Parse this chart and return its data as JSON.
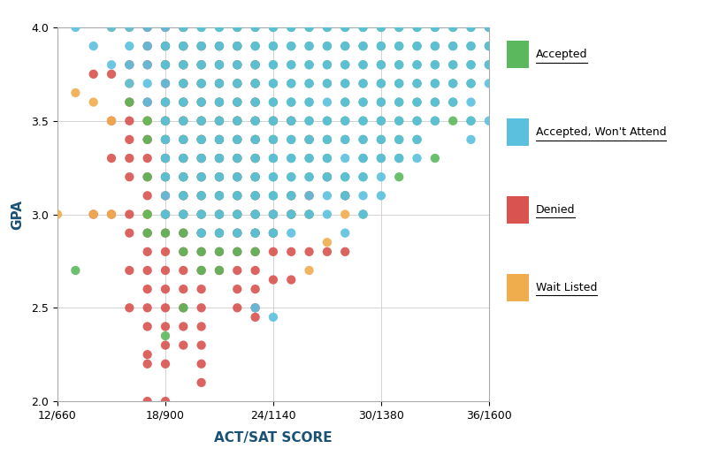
{
  "xlabel": "ACT/SAT SCORE",
  "ylabel": "GPA",
  "xlim": [
    12,
    36
  ],
  "ylim": [
    2.0,
    4.0
  ],
  "xticks": [
    12,
    18,
    24,
    30,
    36
  ],
  "xticklabels": [
    "12/660",
    "18/900",
    "24/1140",
    "30/1380",
    "36/1600"
  ],
  "yticks": [
    2.0,
    2.5,
    3.0,
    3.5,
    4.0
  ],
  "colors": {
    "Accepted": "#5cb85c",
    "Accepted, Won't Attend": "#5bc0de",
    "Denied": "#d9534f",
    "Wait Listed": "#f0ad4e"
  },
  "marker_size": 55,
  "alpha": 0.9,
  "background": "#ffffff",
  "grid_color": "#cccccc",
  "accepted": [
    [
      13,
      2.7
    ],
    [
      16,
      3.6
    ],
    [
      17,
      3.5
    ],
    [
      17,
      3.4
    ],
    [
      17,
      3.2
    ],
    [
      17,
      3.0
    ],
    [
      17,
      2.9
    ],
    [
      18,
      3.9
    ],
    [
      18,
      3.8
    ],
    [
      18,
      3.6
    ],
    [
      18,
      3.5
    ],
    [
      18,
      3.4
    ],
    [
      18,
      3.3
    ],
    [
      18,
      3.2
    ],
    [
      18,
      3.0
    ],
    [
      18,
      2.9
    ],
    [
      18,
      2.35
    ],
    [
      19,
      4.0
    ],
    [
      19,
      3.9
    ],
    [
      19,
      3.8
    ],
    [
      19,
      3.7
    ],
    [
      19,
      3.6
    ],
    [
      19,
      3.5
    ],
    [
      19,
      3.4
    ],
    [
      19,
      3.3
    ],
    [
      19,
      3.2
    ],
    [
      19,
      3.1
    ],
    [
      19,
      3.0
    ],
    [
      19,
      2.9
    ],
    [
      19,
      2.8
    ],
    [
      19,
      2.5
    ],
    [
      20,
      4.0
    ],
    [
      20,
      3.9
    ],
    [
      20,
      3.8
    ],
    [
      20,
      3.7
    ],
    [
      20,
      3.6
    ],
    [
      20,
      3.5
    ],
    [
      20,
      3.4
    ],
    [
      20,
      3.3
    ],
    [
      20,
      3.2
    ],
    [
      20,
      3.1
    ],
    [
      20,
      3.0
    ],
    [
      20,
      2.9
    ],
    [
      20,
      2.8
    ],
    [
      20,
      2.7
    ],
    [
      21,
      4.0
    ],
    [
      21,
      3.9
    ],
    [
      21,
      3.8
    ],
    [
      21,
      3.7
    ],
    [
      21,
      3.6
    ],
    [
      21,
      3.5
    ],
    [
      21,
      3.4
    ],
    [
      21,
      3.3
    ],
    [
      21,
      3.2
    ],
    [
      21,
      3.1
    ],
    [
      21,
      3.0
    ],
    [
      21,
      2.9
    ],
    [
      21,
      2.8
    ],
    [
      21,
      2.7
    ],
    [
      22,
      4.0
    ],
    [
      22,
      3.9
    ],
    [
      22,
      3.8
    ],
    [
      22,
      3.7
    ],
    [
      22,
      3.6
    ],
    [
      22,
      3.5
    ],
    [
      22,
      3.4
    ],
    [
      22,
      3.3
    ],
    [
      22,
      3.2
    ],
    [
      22,
      3.1
    ],
    [
      22,
      3.0
    ],
    [
      22,
      2.9
    ],
    [
      22,
      2.8
    ],
    [
      23,
      4.0
    ],
    [
      23,
      3.9
    ],
    [
      23,
      3.8
    ],
    [
      23,
      3.7
    ],
    [
      23,
      3.6
    ],
    [
      23,
      3.5
    ],
    [
      23,
      3.4
    ],
    [
      23,
      3.3
    ],
    [
      23,
      3.2
    ],
    [
      23,
      3.1
    ],
    [
      23,
      3.0
    ],
    [
      23,
      2.9
    ],
    [
      23,
      2.8
    ],
    [
      24,
      4.0
    ],
    [
      24,
      3.9
    ],
    [
      24,
      3.8
    ],
    [
      24,
      3.7
    ],
    [
      24,
      3.6
    ],
    [
      24,
      3.5
    ],
    [
      24,
      3.4
    ],
    [
      24,
      3.3
    ],
    [
      24,
      3.2
    ],
    [
      24,
      3.1
    ],
    [
      24,
      3.0
    ],
    [
      24,
      2.9
    ],
    [
      25,
      4.0
    ],
    [
      25,
      3.9
    ],
    [
      25,
      3.8
    ],
    [
      25,
      3.7
    ],
    [
      25,
      3.6
    ],
    [
      25,
      3.5
    ],
    [
      25,
      3.4
    ],
    [
      25,
      3.3
    ],
    [
      25,
      3.2
    ],
    [
      25,
      3.1
    ],
    [
      25,
      3.0
    ],
    [
      26,
      4.0
    ],
    [
      26,
      3.9
    ],
    [
      26,
      3.8
    ],
    [
      26,
      3.7
    ],
    [
      26,
      3.6
    ],
    [
      26,
      3.5
    ],
    [
      26,
      3.4
    ],
    [
      26,
      3.3
    ],
    [
      26,
      3.2
    ],
    [
      26,
      3.0
    ],
    [
      27,
      4.0
    ],
    [
      27,
      3.9
    ],
    [
      27,
      3.8
    ],
    [
      27,
      3.7
    ],
    [
      27,
      3.5
    ],
    [
      27,
      3.4
    ],
    [
      27,
      3.3
    ],
    [
      27,
      3.2
    ],
    [
      28,
      4.0
    ],
    [
      28,
      3.9
    ],
    [
      28,
      3.8
    ],
    [
      28,
      3.7
    ],
    [
      28,
      3.6
    ],
    [
      28,
      3.5
    ],
    [
      28,
      3.4
    ],
    [
      28,
      3.2
    ],
    [
      28,
      3.1
    ],
    [
      29,
      4.0
    ],
    [
      29,
      3.9
    ],
    [
      29,
      3.8
    ],
    [
      29,
      3.7
    ],
    [
      29,
      3.6
    ],
    [
      29,
      3.5
    ],
    [
      29,
      3.4
    ],
    [
      29,
      3.3
    ],
    [
      29,
      3.2
    ],
    [
      29,
      3.0
    ],
    [
      30,
      4.0
    ],
    [
      30,
      3.9
    ],
    [
      30,
      3.8
    ],
    [
      30,
      3.7
    ],
    [
      30,
      3.6
    ],
    [
      30,
      3.5
    ],
    [
      30,
      3.4
    ],
    [
      30,
      3.3
    ],
    [
      31,
      4.0
    ],
    [
      31,
      3.9
    ],
    [
      31,
      3.8
    ],
    [
      31,
      3.7
    ],
    [
      31,
      3.6
    ],
    [
      31,
      3.5
    ],
    [
      31,
      3.4
    ],
    [
      31,
      3.3
    ],
    [
      31,
      3.2
    ],
    [
      32,
      4.0
    ],
    [
      32,
      3.9
    ],
    [
      32,
      3.8
    ],
    [
      32,
      3.7
    ],
    [
      32,
      3.6
    ],
    [
      32,
      3.5
    ],
    [
      32,
      3.4
    ],
    [
      33,
      4.0
    ],
    [
      33,
      3.9
    ],
    [
      33,
      3.8
    ],
    [
      33,
      3.7
    ],
    [
      33,
      3.6
    ],
    [
      33,
      3.5
    ],
    [
      33,
      3.3
    ],
    [
      34,
      4.0
    ],
    [
      34,
      3.9
    ],
    [
      34,
      3.8
    ],
    [
      34,
      3.7
    ],
    [
      34,
      3.6
    ],
    [
      34,
      3.5
    ],
    [
      35,
      4.0
    ],
    [
      35,
      3.9
    ],
    [
      35,
      3.8
    ],
    [
      35,
      3.7
    ],
    [
      35,
      3.5
    ],
    [
      36,
      4.0
    ],
    [
      36,
      3.9
    ],
    [
      36,
      3.8
    ]
  ],
  "accepted_wont": [
    [
      13,
      4.0
    ],
    [
      14,
      3.9
    ],
    [
      15,
      4.0
    ],
    [
      15,
      3.8
    ],
    [
      16,
      4.0
    ],
    [
      16,
      3.9
    ],
    [
      16,
      3.8
    ],
    [
      16,
      3.7
    ],
    [
      17,
      4.0
    ],
    [
      17,
      3.9
    ],
    [
      17,
      3.8
    ],
    [
      17,
      3.7
    ],
    [
      17,
      3.6
    ],
    [
      18,
      4.0
    ],
    [
      18,
      3.9
    ],
    [
      18,
      3.8
    ],
    [
      18,
      3.7
    ],
    [
      18,
      3.6
    ],
    [
      18,
      3.5
    ],
    [
      18,
      3.4
    ],
    [
      18,
      3.3
    ],
    [
      18,
      3.2
    ],
    [
      18,
      3.1
    ],
    [
      18,
      3.0
    ],
    [
      19,
      4.0
    ],
    [
      19,
      3.9
    ],
    [
      19,
      3.8
    ],
    [
      19,
      3.7
    ],
    [
      19,
      3.6
    ],
    [
      19,
      3.5
    ],
    [
      19,
      3.4
    ],
    [
      19,
      3.3
    ],
    [
      19,
      3.2
    ],
    [
      19,
      3.1
    ],
    [
      19,
      3.0
    ],
    [
      20,
      4.0
    ],
    [
      20,
      3.9
    ],
    [
      20,
      3.8
    ],
    [
      20,
      3.7
    ],
    [
      20,
      3.6
    ],
    [
      20,
      3.5
    ],
    [
      20,
      3.4
    ],
    [
      20,
      3.3
    ],
    [
      20,
      3.2
    ],
    [
      20,
      3.1
    ],
    [
      20,
      3.0
    ],
    [
      20,
      2.9
    ],
    [
      21,
      4.0
    ],
    [
      21,
      3.9
    ],
    [
      21,
      3.8
    ],
    [
      21,
      3.7
    ],
    [
      21,
      3.6
    ],
    [
      21,
      3.5
    ],
    [
      21,
      3.4
    ],
    [
      21,
      3.3
    ],
    [
      21,
      3.2
    ],
    [
      21,
      3.1
    ],
    [
      21,
      3.0
    ],
    [
      21,
      2.9
    ],
    [
      22,
      4.0
    ],
    [
      22,
      3.9
    ],
    [
      22,
      3.8
    ],
    [
      22,
      3.7
    ],
    [
      22,
      3.6
    ],
    [
      22,
      3.5
    ],
    [
      22,
      3.4
    ],
    [
      22,
      3.3
    ],
    [
      22,
      3.2
    ],
    [
      22,
      3.1
    ],
    [
      22,
      3.0
    ],
    [
      22,
      2.9
    ],
    [
      23,
      4.0
    ],
    [
      23,
      3.9
    ],
    [
      23,
      3.8
    ],
    [
      23,
      3.7
    ],
    [
      23,
      3.6
    ],
    [
      23,
      3.5
    ],
    [
      23,
      3.4
    ],
    [
      23,
      3.3
    ],
    [
      23,
      3.2
    ],
    [
      23,
      3.1
    ],
    [
      23,
      3.0
    ],
    [
      23,
      2.9
    ],
    [
      23,
      2.5
    ],
    [
      24,
      4.0
    ],
    [
      24,
      3.9
    ],
    [
      24,
      3.8
    ],
    [
      24,
      3.7
    ],
    [
      24,
      3.6
    ],
    [
      24,
      3.5
    ],
    [
      24,
      3.4
    ],
    [
      24,
      3.3
    ],
    [
      24,
      3.2
    ],
    [
      24,
      3.1
    ],
    [
      24,
      3.0
    ],
    [
      24,
      2.9
    ],
    [
      24,
      2.45
    ],
    [
      25,
      4.0
    ],
    [
      25,
      3.9
    ],
    [
      25,
      3.8
    ],
    [
      25,
      3.7
    ],
    [
      25,
      3.6
    ],
    [
      25,
      3.5
    ],
    [
      25,
      3.4
    ],
    [
      25,
      3.3
    ],
    [
      25,
      3.2
    ],
    [
      25,
      3.1
    ],
    [
      25,
      3.0
    ],
    [
      25,
      2.9
    ],
    [
      26,
      4.0
    ],
    [
      26,
      3.9
    ],
    [
      26,
      3.8
    ],
    [
      26,
      3.7
    ],
    [
      26,
      3.6
    ],
    [
      26,
      3.5
    ],
    [
      26,
      3.4
    ],
    [
      26,
      3.3
    ],
    [
      26,
      3.2
    ],
    [
      26,
      3.1
    ],
    [
      26,
      3.0
    ],
    [
      27,
      4.0
    ],
    [
      27,
      3.9
    ],
    [
      27,
      3.8
    ],
    [
      27,
      3.7
    ],
    [
      27,
      3.6
    ],
    [
      27,
      3.5
    ],
    [
      27,
      3.4
    ],
    [
      27,
      3.3
    ],
    [
      27,
      3.2
    ],
    [
      27,
      3.1
    ],
    [
      27,
      3.0
    ],
    [
      28,
      4.0
    ],
    [
      28,
      3.9
    ],
    [
      28,
      3.8
    ],
    [
      28,
      3.7
    ],
    [
      28,
      3.6
    ],
    [
      28,
      3.5
    ],
    [
      28,
      3.4
    ],
    [
      28,
      3.3
    ],
    [
      28,
      3.2
    ],
    [
      28,
      3.1
    ],
    [
      28,
      2.9
    ],
    [
      29,
      4.0
    ],
    [
      29,
      3.9
    ],
    [
      29,
      3.8
    ],
    [
      29,
      3.7
    ],
    [
      29,
      3.6
    ],
    [
      29,
      3.5
    ],
    [
      29,
      3.4
    ],
    [
      29,
      3.3
    ],
    [
      29,
      3.2
    ],
    [
      29,
      3.1
    ],
    [
      29,
      3.0
    ],
    [
      30,
      4.0
    ],
    [
      30,
      3.9
    ],
    [
      30,
      3.8
    ],
    [
      30,
      3.7
    ],
    [
      30,
      3.6
    ],
    [
      30,
      3.5
    ],
    [
      30,
      3.4
    ],
    [
      30,
      3.3
    ],
    [
      30,
      3.2
    ],
    [
      30,
      3.1
    ],
    [
      31,
      4.0
    ],
    [
      31,
      3.9
    ],
    [
      31,
      3.8
    ],
    [
      31,
      3.7
    ],
    [
      31,
      3.6
    ],
    [
      31,
      3.5
    ],
    [
      31,
      3.4
    ],
    [
      31,
      3.3
    ],
    [
      32,
      4.0
    ],
    [
      32,
      3.9
    ],
    [
      32,
      3.8
    ],
    [
      32,
      3.7
    ],
    [
      32,
      3.6
    ],
    [
      32,
      3.5
    ],
    [
      32,
      3.4
    ],
    [
      32,
      3.3
    ],
    [
      33,
      4.0
    ],
    [
      33,
      3.9
    ],
    [
      33,
      3.8
    ],
    [
      33,
      3.7
    ],
    [
      33,
      3.6
    ],
    [
      33,
      3.5
    ],
    [
      34,
      4.0
    ],
    [
      34,
      3.9
    ],
    [
      34,
      3.8
    ],
    [
      34,
      3.7
    ],
    [
      34,
      3.6
    ],
    [
      35,
      4.0
    ],
    [
      35,
      3.9
    ],
    [
      35,
      3.8
    ],
    [
      35,
      3.7
    ],
    [
      35,
      3.6
    ],
    [
      35,
      3.5
    ],
    [
      35,
      3.4
    ],
    [
      36,
      4.0
    ],
    [
      36,
      3.9
    ],
    [
      36,
      3.8
    ],
    [
      36,
      3.7
    ],
    [
      36,
      3.5
    ]
  ],
  "denied": [
    [
      14,
      3.75
    ],
    [
      14,
      3.0
    ],
    [
      15,
      3.75
    ],
    [
      15,
      3.5
    ],
    [
      15,
      3.3
    ],
    [
      15,
      3.0
    ],
    [
      16,
      3.8
    ],
    [
      16,
      3.6
    ],
    [
      16,
      3.5
    ],
    [
      16,
      3.4
    ],
    [
      16,
      3.3
    ],
    [
      16,
      3.2
    ],
    [
      16,
      3.0
    ],
    [
      16,
      2.9
    ],
    [
      16,
      2.7
    ],
    [
      16,
      2.5
    ],
    [
      17,
      4.0
    ],
    [
      17,
      3.9
    ],
    [
      17,
      3.8
    ],
    [
      17,
      3.6
    ],
    [
      17,
      3.5
    ],
    [
      17,
      3.4
    ],
    [
      17,
      3.3
    ],
    [
      17,
      3.2
    ],
    [
      17,
      3.1
    ],
    [
      17,
      3.0
    ],
    [
      17,
      2.9
    ],
    [
      17,
      2.8
    ],
    [
      17,
      2.7
    ],
    [
      17,
      2.6
    ],
    [
      17,
      2.5
    ],
    [
      17,
      2.4
    ],
    [
      17,
      2.25
    ],
    [
      17,
      2.2
    ],
    [
      17,
      2.0
    ],
    [
      18,
      4.0
    ],
    [
      18,
      3.9
    ],
    [
      18,
      3.8
    ],
    [
      18,
      3.7
    ],
    [
      18,
      3.6
    ],
    [
      18,
      3.5
    ],
    [
      18,
      3.4
    ],
    [
      18,
      3.3
    ],
    [
      18,
      3.2
    ],
    [
      18,
      3.1
    ],
    [
      18,
      3.0
    ],
    [
      18,
      2.9
    ],
    [
      18,
      2.8
    ],
    [
      18,
      2.7
    ],
    [
      18,
      2.6
    ],
    [
      18,
      2.5
    ],
    [
      18,
      2.4
    ],
    [
      18,
      2.3
    ],
    [
      18,
      2.2
    ],
    [
      18,
      2.0
    ],
    [
      19,
      4.0
    ],
    [
      19,
      3.9
    ],
    [
      19,
      3.8
    ],
    [
      19,
      3.7
    ],
    [
      19,
      3.6
    ],
    [
      19,
      3.5
    ],
    [
      19,
      3.4
    ],
    [
      19,
      3.3
    ],
    [
      19,
      3.2
    ],
    [
      19,
      3.1
    ],
    [
      19,
      3.0
    ],
    [
      19,
      2.9
    ],
    [
      19,
      2.8
    ],
    [
      19,
      2.7
    ],
    [
      19,
      2.6
    ],
    [
      19,
      2.5
    ],
    [
      19,
      2.4
    ],
    [
      19,
      2.3
    ],
    [
      20,
      3.9
    ],
    [
      20,
      3.8
    ],
    [
      20,
      3.7
    ],
    [
      20,
      3.6
    ],
    [
      20,
      3.5
    ],
    [
      20,
      3.4
    ],
    [
      20,
      3.3
    ],
    [
      20,
      3.2
    ],
    [
      20,
      3.1
    ],
    [
      20,
      3.0
    ],
    [
      20,
      2.9
    ],
    [
      20,
      2.8
    ],
    [
      20,
      2.7
    ],
    [
      20,
      2.6
    ],
    [
      20,
      2.5
    ],
    [
      20,
      2.4
    ],
    [
      20,
      2.3
    ],
    [
      20,
      2.2
    ],
    [
      20,
      2.1
    ],
    [
      21,
      3.9
    ],
    [
      21,
      3.8
    ],
    [
      21,
      3.7
    ],
    [
      21,
      3.6
    ],
    [
      21,
      3.5
    ],
    [
      21,
      3.4
    ],
    [
      21,
      3.3
    ],
    [
      21,
      3.2
    ],
    [
      21,
      3.1
    ],
    [
      21,
      3.0
    ],
    [
      21,
      2.9
    ],
    [
      21,
      2.8
    ],
    [
      21,
      2.7
    ],
    [
      22,
      3.9
    ],
    [
      22,
      3.8
    ],
    [
      22,
      3.7
    ],
    [
      22,
      3.6
    ],
    [
      22,
      3.5
    ],
    [
      22,
      3.4
    ],
    [
      22,
      3.3
    ],
    [
      22,
      3.2
    ],
    [
      22,
      3.1
    ],
    [
      22,
      3.0
    ],
    [
      22,
      2.9
    ],
    [
      22,
      2.8
    ],
    [
      22,
      2.7
    ],
    [
      22,
      2.6
    ],
    [
      22,
      2.5
    ],
    [
      23,
      3.8
    ],
    [
      23,
      3.7
    ],
    [
      23,
      3.6
    ],
    [
      23,
      3.5
    ],
    [
      23,
      3.4
    ],
    [
      23,
      3.3
    ],
    [
      23,
      3.2
    ],
    [
      23,
      3.1
    ],
    [
      23,
      3.0
    ],
    [
      23,
      2.9
    ],
    [
      23,
      2.8
    ],
    [
      23,
      2.7
    ],
    [
      23,
      2.6
    ],
    [
      23,
      2.5
    ],
    [
      23,
      2.45
    ],
    [
      24,
      3.5
    ],
    [
      24,
      3.0
    ],
    [
      24,
      2.9
    ],
    [
      24,
      2.8
    ],
    [
      24,
      2.65
    ],
    [
      25,
      3.5
    ],
    [
      25,
      3.1
    ],
    [
      25,
      3.0
    ],
    [
      25,
      2.8
    ],
    [
      25,
      2.65
    ],
    [
      26,
      3.4
    ],
    [
      26,
      3.1
    ],
    [
      26,
      2.8
    ],
    [
      27,
      3.2
    ],
    [
      27,
      2.8
    ],
    [
      28,
      3.1
    ],
    [
      28,
      2.8
    ]
  ],
  "waitlisted": [
    [
      12,
      3.0
    ],
    [
      13,
      3.65
    ],
    [
      14,
      3.6
    ],
    [
      14,
      3.0
    ],
    [
      15,
      4.0
    ],
    [
      15,
      3.5
    ],
    [
      15,
      3.0
    ],
    [
      16,
      4.0
    ],
    [
      16,
      3.7
    ],
    [
      17,
      3.5
    ],
    [
      17,
      3.0
    ],
    [
      18,
      3.5
    ],
    [
      18,
      3.4
    ],
    [
      18,
      3.0
    ],
    [
      19,
      3.8
    ],
    [
      19,
      3.5
    ],
    [
      20,
      3.5
    ],
    [
      20,
      3.4
    ],
    [
      21,
      3.5
    ],
    [
      22,
      4.0
    ],
    [
      22,
      3.5
    ],
    [
      23,
      3.3
    ],
    [
      24,
      3.4
    ],
    [
      25,
      3.0
    ],
    [
      26,
      2.7
    ],
    [
      26,
      3.0
    ],
    [
      27,
      2.85
    ],
    [
      28,
      3.0
    ]
  ],
  "legend_order": [
    "Accepted",
    "Accepted, Won't Attend",
    "Denied",
    "Wait Listed"
  ]
}
